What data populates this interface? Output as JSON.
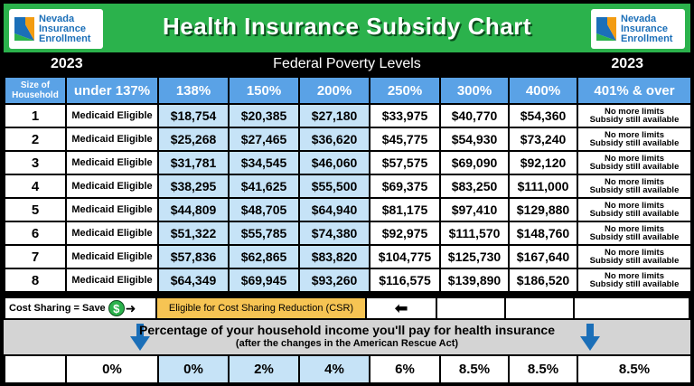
{
  "header": {
    "title": "Health Insurance Subsidy Chart",
    "logo_line1": "Nevada",
    "logo_line2": "Insurance",
    "logo_line3": "Enrollment"
  },
  "year_left": "2023",
  "year_right": "2023",
  "fpl_label": "Federal Poverty Levels",
  "columns": [
    "Size of Household",
    "under 137%",
    "138%",
    "150%",
    "200%",
    "250%",
    "300%",
    "400%",
    "401% & over"
  ],
  "rows": [
    {
      "size": "1",
      "c0": "Medicaid Eligible",
      "c1": "$18,754",
      "c2": "$20,385",
      "c3": "$27,180",
      "c4": "$33,975",
      "c5": "$40,770",
      "c6": "$54,360"
    },
    {
      "size": "2",
      "c0": "Medicaid Eligible",
      "c1": "$25,268",
      "c2": "$27,465",
      "c3": "$36,620",
      "c4": "$45,775",
      "c5": "$54,930",
      "c6": "$73,240"
    },
    {
      "size": "3",
      "c0": "Medicaid Eligible",
      "c1": "$31,781",
      "c2": "$34,545",
      "c3": "$46,060",
      "c4": "$57,575",
      "c5": "$69,090",
      "c6": "$92,120"
    },
    {
      "size": "4",
      "c0": "Medicaid Eligible",
      "c1": "$38,295",
      "c2": "$41,625",
      "c3": "$55,500",
      "c4": "$69,375",
      "c5": "$83,250",
      "c6": "$111,000"
    },
    {
      "size": "5",
      "c0": "Medicaid Eligible",
      "c1": "$44,809",
      "c2": "$48,705",
      "c3": "$64,940",
      "c4": "$81,175",
      "c5": "$97,410",
      "c6": "$129,880"
    },
    {
      "size": "6",
      "c0": "Medicaid Eligible",
      "c1": "$51,322",
      "c2": "$55,785",
      "c3": "$74,380",
      "c4": "$92,975",
      "c5": "$111,570",
      "c6": "$148,760"
    },
    {
      "size": "7",
      "c0": "Medicaid Eligible",
      "c1": "$57,836",
      "c2": "$62,865",
      "c3": "$83,820",
      "c4": "$104,775",
      "c5": "$125,730",
      "c6": "$167,640"
    },
    {
      "size": "8",
      "c0": "Medicaid Eligible",
      "c1": "$64,349",
      "c2": "$69,945",
      "c3": "$93,260",
      "c4": "$116,575",
      "c5": "$139,890",
      "c6": "$186,520"
    }
  ],
  "limits_line1": "No more limits",
  "limits_line2": "Subsidy still available",
  "cost_sharing": {
    "label": "Cost Sharing = Save",
    "dollar": "$",
    "csr_text": "Eligible for Cost Sharing Reduction (CSR)"
  },
  "percentage": {
    "title": "Percentage of your household income you'll pay for health insurance",
    "subtitle": "(after the changes in the American Rescue Act)",
    "values": [
      "",
      "0%",
      "0%",
      "2%",
      "4%",
      "6%",
      "8.5%",
      "8.5%",
      "8.5%"
    ]
  },
  "colors": {
    "header_green": "#2bb24c",
    "header_blue": "#5aa2e6",
    "light_blue": "#c6e3f7",
    "csr_orange": "#f6c453",
    "arrow_blue": "#1b6fb8"
  }
}
